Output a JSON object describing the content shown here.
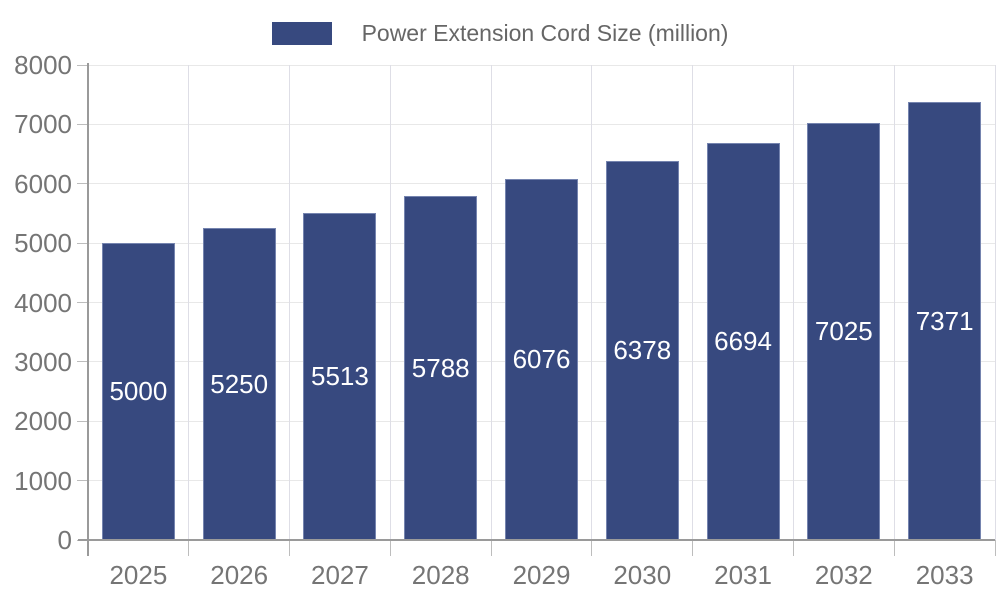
{
  "legend": {
    "label": "Power Extension Cord Size (million)",
    "swatch_color": "#37497f"
  },
  "chart_data": {
    "type": "bar",
    "title": "Power Extension Cord Size (million)",
    "series_name": "Power Extension Cord Size (million)",
    "categories": [
      "2025",
      "2026",
      "2027",
      "2028",
      "2029",
      "2030",
      "2031",
      "2032",
      "2033"
    ],
    "values": [
      5000,
      5250,
      5513,
      5788,
      6076,
      6378,
      6694,
      7025,
      7371
    ],
    "xlabel": "",
    "ylabel": "",
    "ylim": [
      0,
      8000
    ],
    "yticks": [
      0,
      1000,
      2000,
      3000,
      4000,
      5000,
      6000,
      7000,
      8000
    ],
    "grid": true,
    "legend_position": "top",
    "bar_color": "#37497f",
    "value_label_color": "#ffffff",
    "value_label_position": "center",
    "tick_label_color": "#757575",
    "grid_color_horizontal": "#e8e8e8",
    "grid_color_vertical": "#dedee6",
    "axis_color": "#9a9a9a",
    "background_color": "#ffffff"
  }
}
